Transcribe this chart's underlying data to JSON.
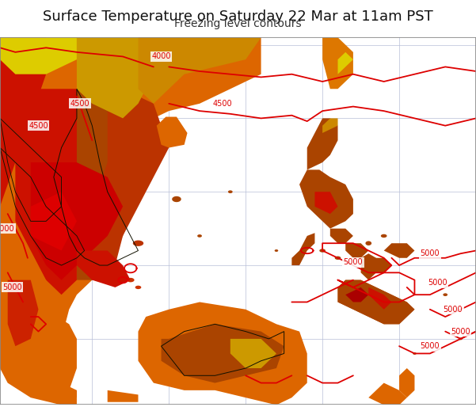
{
  "title": "Surface Temperature on Saturday 22 Mar at 11am PST",
  "subtitle": "Freezing level contours",
  "title_fontsize": 13,
  "subtitle_fontsize": 10,
  "background_color": "#ffffff",
  "sea_color": "#c5cce8",
  "border_color": "#888888",
  "figure_width": 6.01,
  "figure_height": 5.14,
  "dpi": 100,
  "lon_min": 99.0,
  "lon_max": 130.0,
  "lat_min": 0.5,
  "lat_max": 25.5,
  "grid_color": "#b8bfd8",
  "grid_lons": [
    105,
    110,
    115,
    120,
    125,
    130
  ],
  "grid_lats": [
    5,
    10,
    15,
    20,
    25
  ],
  "contour_color": "#dd0000",
  "contour_lw": 1.3,
  "label_fontsize": 7,
  "land_base_color": "#cc6600",
  "hot_color": "#cc1100",
  "warm_color": "#cc3300",
  "orange_color": "#dd6600",
  "brown_color": "#aa4400",
  "yellow_color": "#ddcc00",
  "border_lw": 0.7,
  "border_color_land": "#111100"
}
